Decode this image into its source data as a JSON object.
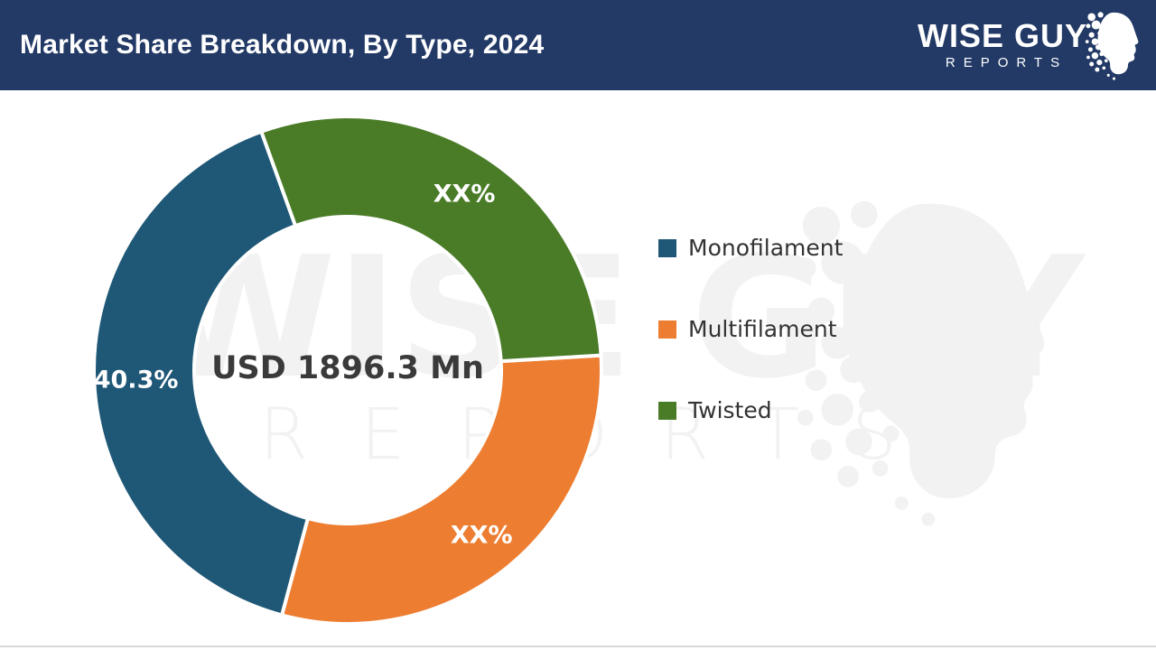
{
  "header": {
    "title": "Market Share Breakdown, By Type, 2024",
    "logo": {
      "line1": "WISE GUY",
      "line2": "REPORTS"
    }
  },
  "watermark": {
    "line1": "WISE GUY",
    "line2": "REPORTS"
  },
  "chart_data": {
    "type": "pie",
    "subtype": "donut",
    "title": "Market Share Breakdown, By Type, 2024",
    "center_label": "USD 1896.3 Mn",
    "start_angle_deg": 109.9,
    "direction": "ccw",
    "inner_radius_ratio": 0.605,
    "legend_position": "right",
    "segments": [
      {
        "name": "Monofilament",
        "value": 40.3,
        "display_label": "40.3%",
        "color": "#1f5876"
      },
      {
        "name": "Multifilament",
        "value": 30.1,
        "display_label": "XX%",
        "color": "#ed7d31"
      },
      {
        "name": "Twisted",
        "value": 29.6,
        "display_label": "XX%",
        "color": "#4a7c28"
      }
    ]
  },
  "colors": {
    "header_background": "#233a66",
    "title_text": "#ffffff",
    "center_text": "#3a3a3a",
    "legend_text": "#333333",
    "watermark": "#f2f2f2"
  }
}
